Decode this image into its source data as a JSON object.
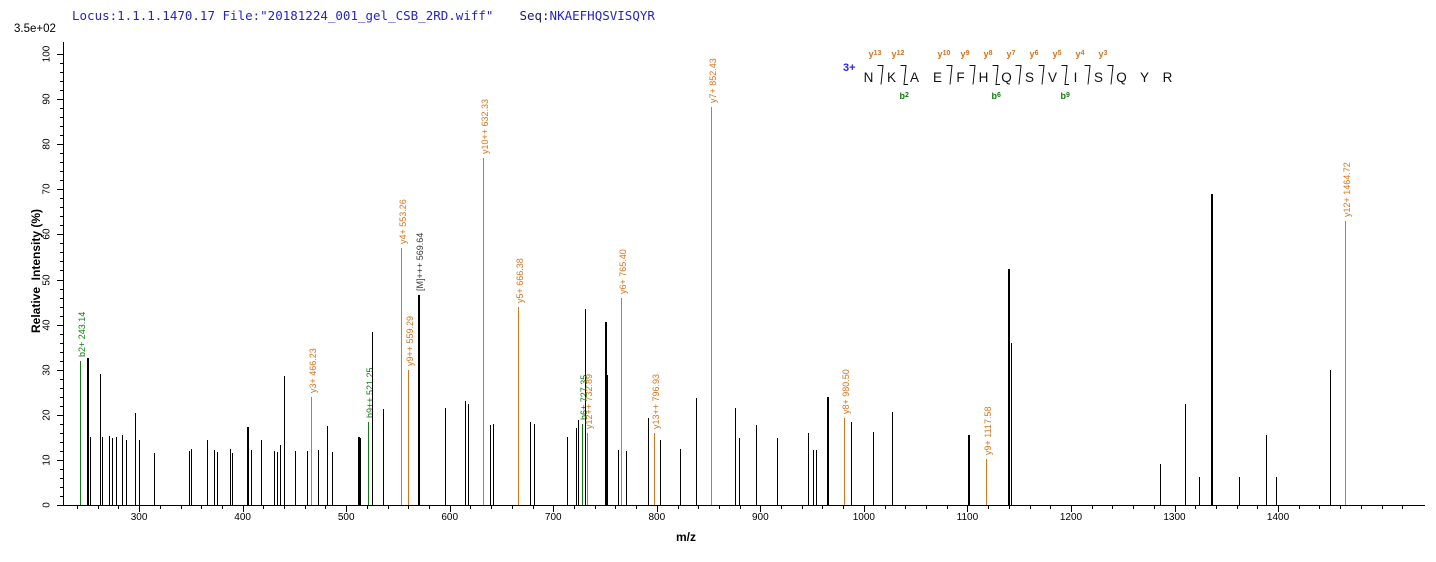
{
  "header": {
    "locus_file": "Locus:1.1.1.1470.17 File:\"20181224_001_gel_CSB_2RD.wiff\"",
    "seq_label": "Seq:",
    "sequence": "NKAEFHQSVISQYR"
  },
  "scale_note": "3.5e+02",
  "colors": {
    "y_ion": "#d9731c",
    "b_ion": "#0e7c0e",
    "precursor_label": "#3a3a3a",
    "peak_black": "#000000",
    "header_blue": "#2424cc"
  },
  "sequence_annotation": {
    "charge": "3+",
    "residues": [
      "N",
      "K",
      "A",
      "E",
      "F",
      "H",
      "Q",
      "S",
      "V",
      "I",
      "S",
      "Q",
      "Y",
      "R"
    ],
    "cleavages": [
      {
        "gap": 0,
        "y": "y13"
      },
      {
        "gap": 1,
        "y": "y12",
        "b": "b2"
      },
      {
        "gap": 3,
        "y": "y10"
      },
      {
        "gap": 4,
        "y": "y9"
      },
      {
        "gap": 5,
        "y": "y8",
        "b": "b6"
      },
      {
        "gap": 6,
        "y": "y7"
      },
      {
        "gap": 7,
        "y": "y6"
      },
      {
        "gap": 8,
        "y": "y5",
        "b": "b9"
      },
      {
        "gap": 9,
        "y": "y4"
      },
      {
        "gap": 10,
        "y": "y3"
      }
    ]
  },
  "chart_data": {
    "type": "bar",
    "subtype": "ms2_centroid_spectrum",
    "title": "",
    "xlabel": "m/z",
    "ylabel": "Relative  Intensity (%)",
    "xlim": [
      226.5,
      1540
    ],
    "ylim": [
      0,
      100
    ],
    "x_major_ticks": [
      300,
      400,
      500,
      600,
      700,
      800,
      900,
      1000,
      1100,
      1200,
      1300,
      1400
    ],
    "x_minor_tick_step": 20,
    "y_major_ticks": [
      0,
      10,
      20,
      30,
      40,
      50,
      60,
      70,
      80,
      90,
      100
    ],
    "y_minor_tick_step": 2,
    "grid": false,
    "legend": false,
    "peaks": [
      {
        "mz": 243.14,
        "i": 32.0,
        "t": "b",
        "label": "b2+ 243.14"
      },
      {
        "mz": 250.0,
        "i": 32.5,
        "t": "k",
        "w": 2
      },
      {
        "mz": 253.0,
        "i": 15.0,
        "t": "k"
      },
      {
        "mz": 262.0,
        "i": 29.0,
        "t": "k"
      },
      {
        "mz": 264.5,
        "i": 15.0,
        "t": "k"
      },
      {
        "mz": 271.0,
        "i": 15.3,
        "t": "k"
      },
      {
        "mz": 274.0,
        "i": 14.8,
        "t": "k"
      },
      {
        "mz": 278.0,
        "i": 15.0,
        "t": "k"
      },
      {
        "mz": 283.3,
        "i": 15.5,
        "t": "k"
      },
      {
        "mz": 287.2,
        "i": 14.5,
        "t": "k"
      },
      {
        "mz": 296.0,
        "i": 20.5,
        "t": "k"
      },
      {
        "mz": 299.5,
        "i": 14.5,
        "t": "k"
      },
      {
        "mz": 314.0,
        "i": 11.5,
        "t": "k"
      },
      {
        "mz": 348.0,
        "i": 12.0,
        "t": "k"
      },
      {
        "mz": 350.5,
        "i": 12.5,
        "t": "k"
      },
      {
        "mz": 365.4,
        "i": 14.5,
        "t": "k"
      },
      {
        "mz": 372.5,
        "i": 12.3,
        "t": "k"
      },
      {
        "mz": 375.0,
        "i": 11.7,
        "t": "k"
      },
      {
        "mz": 387.6,
        "i": 12.5,
        "t": "k"
      },
      {
        "mz": 390.0,
        "i": 11.5,
        "t": "k"
      },
      {
        "mz": 404.3,
        "i": 17.2,
        "t": "k",
        "w": 2
      },
      {
        "mz": 408.0,
        "i": 12.3,
        "t": "k"
      },
      {
        "mz": 417.5,
        "i": 14.4,
        "t": "k"
      },
      {
        "mz": 430.0,
        "i": 12.0,
        "t": "k"
      },
      {
        "mz": 433.0,
        "i": 11.8,
        "t": "k"
      },
      {
        "mz": 436.0,
        "i": 13.3,
        "t": "k"
      },
      {
        "mz": 439.5,
        "i": 28.5,
        "t": "k"
      },
      {
        "mz": 451.0,
        "i": 12.0,
        "t": "k"
      },
      {
        "mz": 462.0,
        "i": 12.0,
        "t": "k"
      },
      {
        "mz": 466.23,
        "i": 24.0,
        "t": "y",
        "label": "y3+ 466.23"
      },
      {
        "mz": 473.0,
        "i": 12.2,
        "t": "k"
      },
      {
        "mz": 481.0,
        "i": 17.5,
        "t": "k"
      },
      {
        "mz": 486.0,
        "i": 11.7,
        "t": "k"
      },
      {
        "mz": 511.0,
        "i": 15.1,
        "t": "k",
        "w": 2
      },
      {
        "mz": 513.5,
        "i": 14.8,
        "t": "k"
      },
      {
        "mz": 521.25,
        "i": 18.3,
        "t": "b",
        "label": "b9++ 521.25"
      },
      {
        "mz": 525.0,
        "i": 38.4,
        "t": "k"
      },
      {
        "mz": 536.0,
        "i": 21.3,
        "t": "k"
      },
      {
        "mz": 553.26,
        "i": 57.0,
        "t": "y",
        "label": "y4+ 553.26"
      },
      {
        "mz": 559.29,
        "i": 30.0,
        "t": "y",
        "label": "y9++ 559.29"
      },
      {
        "mz": 569.64,
        "i": 46.5,
        "t": "m",
        "label": "[M]+++ 569.64",
        "w": 2
      },
      {
        "mz": 595.0,
        "i": 21.5,
        "t": "k"
      },
      {
        "mz": 615.0,
        "i": 23.0,
        "t": "k"
      },
      {
        "mz": 617.5,
        "i": 22.5,
        "t": "k"
      },
      {
        "mz": 632.33,
        "i": 77.0,
        "t": "y",
        "label": "y10++ 632.33"
      },
      {
        "mz": 639.0,
        "i": 17.7,
        "t": "k"
      },
      {
        "mz": 642.0,
        "i": 18.0,
        "t": "k"
      },
      {
        "mz": 666.38,
        "i": 44.0,
        "t": "y",
        "label": "y5+ 666.38"
      },
      {
        "mz": 678.0,
        "i": 18.4,
        "t": "k"
      },
      {
        "mz": 681.0,
        "i": 18.0,
        "t": "k"
      },
      {
        "mz": 713.0,
        "i": 15.0,
        "t": "k"
      },
      {
        "mz": 722.0,
        "i": 17.0,
        "t": "k"
      },
      {
        "mz": 723.7,
        "i": 18.8,
        "t": "k"
      },
      {
        "mz": 727.35,
        "i": 18.0,
        "t": "b",
        "label": "b6+ 727.35"
      },
      {
        "mz": 731.0,
        "i": 43.5,
        "t": "k"
      },
      {
        "mz": 732.89,
        "i": 16.0,
        "t": "y",
        "label": "y12++ 732.89"
      },
      {
        "mz": 749.5,
        "i": 40.5,
        "t": "k",
        "w": 2
      },
      {
        "mz": 751.5,
        "i": 28.8,
        "t": "k"
      },
      {
        "mz": 763.0,
        "i": 12.2,
        "t": "k"
      },
      {
        "mz": 765.4,
        "i": 46.0,
        "t": "y",
        "label": "y6+ 765.40"
      },
      {
        "mz": 770.5,
        "i": 12.0,
        "t": "k"
      },
      {
        "mz": 791.8,
        "i": 19.3,
        "t": "k"
      },
      {
        "mz": 796.93,
        "i": 16.0,
        "t": "y",
        "label": "y13++ 796.93"
      },
      {
        "mz": 803.0,
        "i": 14.4,
        "t": "k"
      },
      {
        "mz": 822.0,
        "i": 12.4,
        "t": "k"
      },
      {
        "mz": 838.0,
        "i": 23.7,
        "t": "k"
      },
      {
        "mz": 852.43,
        "i": 88.3,
        "t": "y",
        "label": "y7+ 852.43"
      },
      {
        "mz": 876.0,
        "i": 21.5,
        "t": "k"
      },
      {
        "mz": 879.0,
        "i": 14.8,
        "t": "k"
      },
      {
        "mz": 896.0,
        "i": 17.7,
        "t": "k"
      },
      {
        "mz": 916.0,
        "i": 14.8,
        "t": "k"
      },
      {
        "mz": 946.0,
        "i": 15.9,
        "t": "k"
      },
      {
        "mz": 951.0,
        "i": 12.2,
        "t": "k"
      },
      {
        "mz": 954.0,
        "i": 12.2,
        "t": "k"
      },
      {
        "mz": 964.5,
        "i": 23.9,
        "t": "k",
        "w": 2
      },
      {
        "mz": 980.5,
        "i": 19.2,
        "t": "y",
        "label": "y8+ 980.50"
      },
      {
        "mz": 988.0,
        "i": 18.4,
        "t": "k"
      },
      {
        "mz": 1009.0,
        "i": 16.2,
        "t": "k"
      },
      {
        "mz": 1027.0,
        "i": 20.6,
        "t": "k"
      },
      {
        "mz": 1100.5,
        "i": 15.5,
        "t": "k",
        "w": 2
      },
      {
        "mz": 1117.58,
        "i": 10.2,
        "t": "y",
        "label": "y9+ 1117.58"
      },
      {
        "mz": 1139.5,
        "i": 52.4,
        "t": "k",
        "w": 2
      },
      {
        "mz": 1142.0,
        "i": 36.0,
        "t": "k"
      },
      {
        "mz": 1286.0,
        "i": 9.2,
        "t": "k"
      },
      {
        "mz": 1310.0,
        "i": 22.3,
        "t": "k"
      },
      {
        "mz": 1324.0,
        "i": 6.2,
        "t": "k"
      },
      {
        "mz": 1335.0,
        "i": 69.0,
        "t": "k",
        "w": 2
      },
      {
        "mz": 1362.0,
        "i": 6.2,
        "t": "k"
      },
      {
        "mz": 1388.0,
        "i": 15.5,
        "t": "k"
      },
      {
        "mz": 1398.0,
        "i": 6.2,
        "t": "k"
      },
      {
        "mz": 1450.0,
        "i": 30.0,
        "t": "k"
      },
      {
        "mz": 1464.72,
        "i": 63.0,
        "t": "y",
        "label": "y12+ 1464.72"
      }
    ]
  }
}
